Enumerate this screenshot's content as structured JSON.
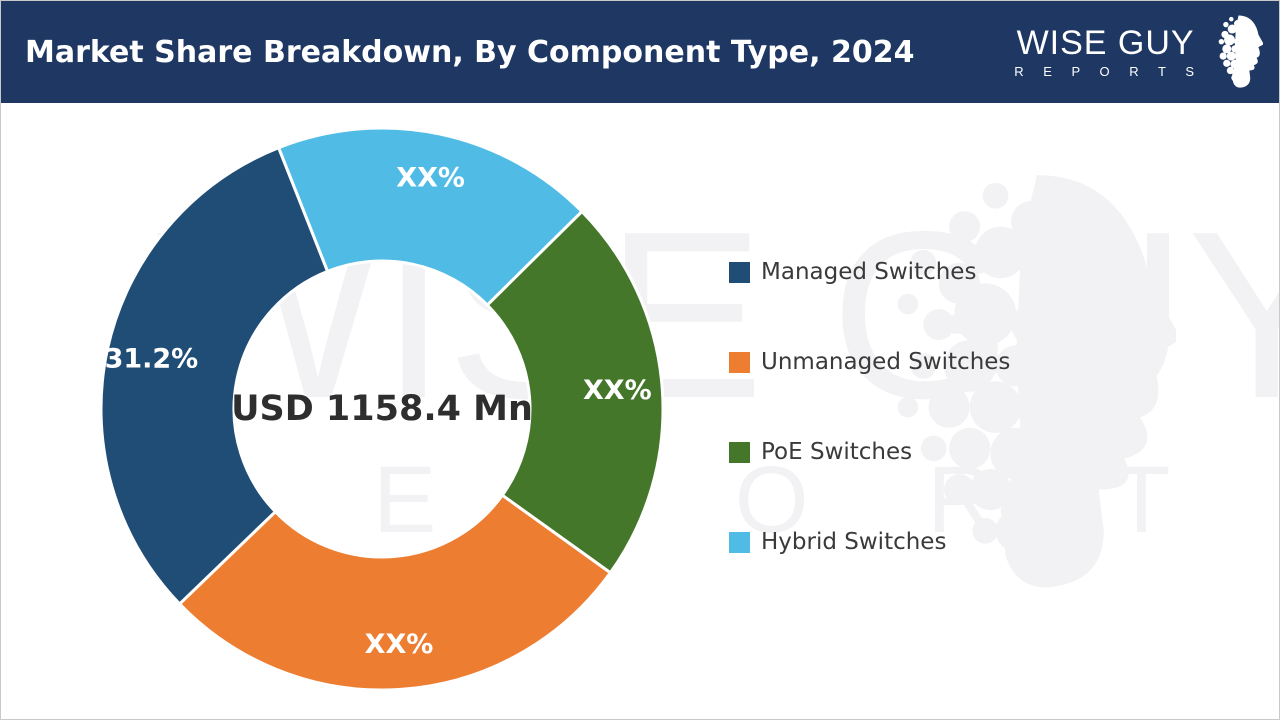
{
  "header": {
    "bg_color": "#1f3763",
    "logo": {
      "line1": "WISE GUY",
      "line2": "REPORTS"
    }
  },
  "watermark": {
    "line1": "WISE GUY",
    "line2": "REPORTS"
  },
  "chart_data": {
    "type": "pie",
    "subtype": "donut",
    "title": "Market Share Breakdown, By Component Type, 2024",
    "center_label": "USD 1158.4 Mn",
    "legend_position": "right",
    "start_angle": -21.6,
    "direction": "clockwise-from-last-series",
    "series": [
      {
        "name": "Managed Switches",
        "label": "31.2%",
        "value": 31.2,
        "color": "#204d75"
      },
      {
        "name": "Unmanaged Switches",
        "label": "XX%",
        "value": 27.9,
        "color": "#ed7d31"
      },
      {
        "name": "PoE Switches",
        "label": "XX%",
        "value": 22.3,
        "color": "#45772b"
      },
      {
        "name": "Hybrid Switches",
        "label": "XX%",
        "value": 18.6,
        "color": "#50bce6"
      }
    ]
  }
}
